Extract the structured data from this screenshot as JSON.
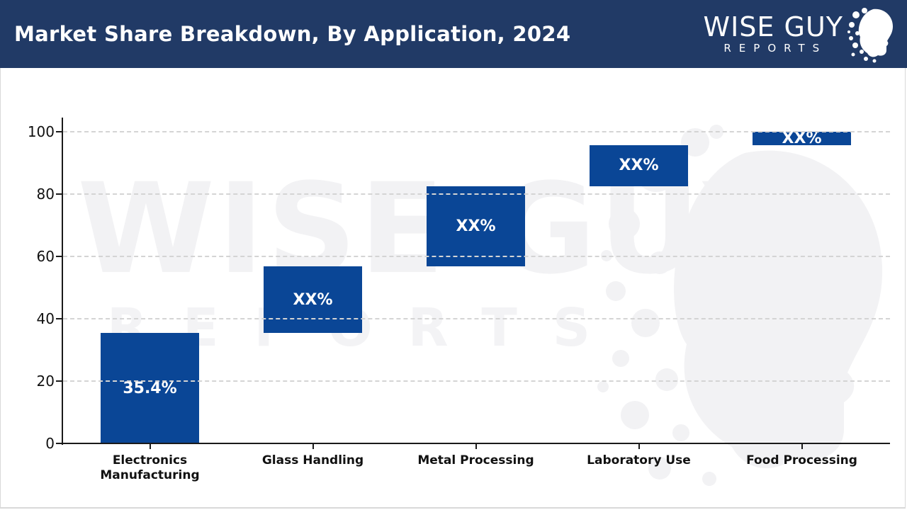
{
  "header": {
    "title": "Market Share Breakdown, By Application, 2024",
    "bg_color": "#213a66",
    "logo": {
      "line1": "WISE GUY",
      "line2": "REPORTS"
    }
  },
  "watermark": {
    "line1": "WISE GUY",
    "line2": "REPORTS"
  },
  "chart_data": {
    "type": "bar",
    "subtype": "waterfall",
    "title": "Market Share Breakdown, By Application, 2024",
    "categories": [
      "Electronics Manufacturing",
      "Glass Handling",
      "Metal Processing",
      "Laboratory Use",
      "Food Processing"
    ],
    "segments": [
      {
        "category": "Electronics Manufacturing",
        "start": 0,
        "end": 35.4,
        "value": 35.4,
        "label": "35.4%"
      },
      {
        "category": "Glass Handling",
        "start": 35.4,
        "end": 56.8,
        "value": 21.4,
        "label": "XX%"
      },
      {
        "category": "Metal Processing",
        "start": 56.8,
        "end": 82.6,
        "value": 25.8,
        "label": "XX%"
      },
      {
        "category": "Laboratory Use",
        "start": 82.6,
        "end": 95.6,
        "value": 13.0,
        "label": "XX%"
      },
      {
        "category": "Food Processing",
        "start": 95.6,
        "end": 100,
        "value": 4.4,
        "label": "XX%"
      }
    ],
    "y_ticks": [
      0,
      20,
      40,
      60,
      80,
      100
    ],
    "ylim": [
      0,
      100
    ],
    "xlabel": "",
    "ylabel": "",
    "bar_color": "#0a4696",
    "label_color": "#ffffff",
    "grid": "horizontal-dashed",
    "legend": "none"
  }
}
